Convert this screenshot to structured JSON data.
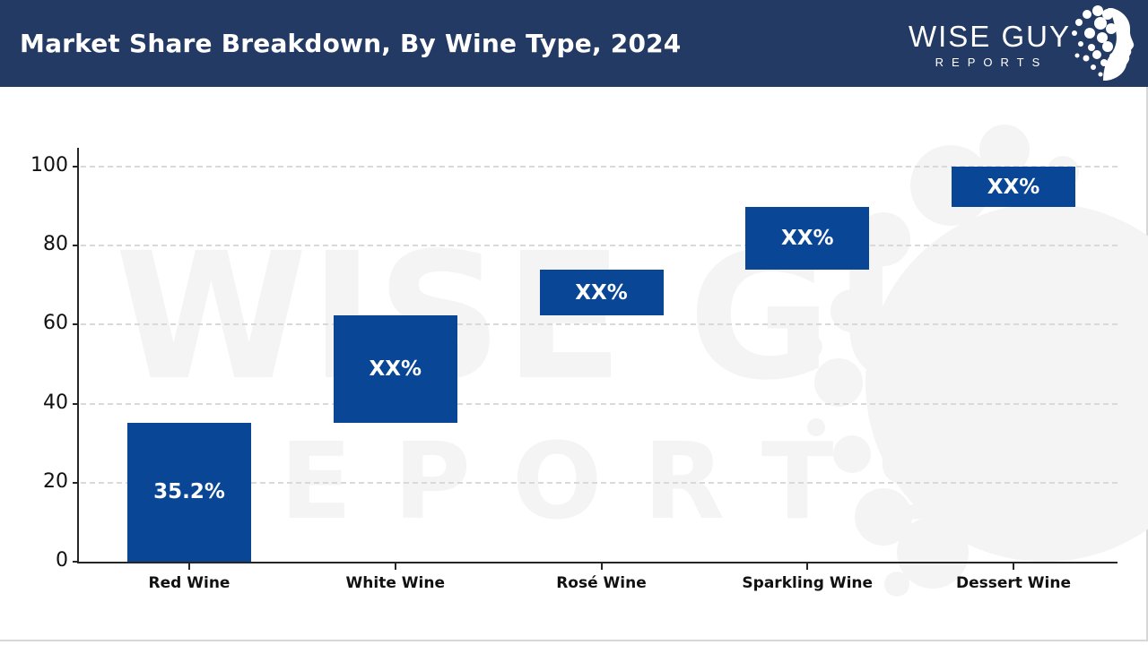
{
  "header": {
    "title": "Market Share Breakdown, By Wine Type, 2024",
    "bg_color": "#233a64",
    "logo": {
      "line1": "WISE GUY",
      "line2": "REPORTS"
    }
  },
  "watermark": {
    "line1": "WISE GUY",
    "line2": "REPORTS"
  },
  "chart_data": {
    "type": "bar",
    "subtype": "waterfall",
    "title": "Market Share Breakdown, By Wine Type, 2024",
    "categories": [
      "Red Wine",
      "White Wine",
      "Rosé Wine",
      "Sparkling Wine",
      "Dessert Wine"
    ],
    "segments": [
      {
        "category": "Red Wine",
        "start": 0,
        "end": 35.2,
        "label": "35.2%"
      },
      {
        "category": "White Wine",
        "start": 35.2,
        "end": 62.3,
        "label": "XX%"
      },
      {
        "category": "Rosé Wine",
        "start": 62.3,
        "end": 73.9,
        "label": "XX%"
      },
      {
        "category": "Sparkling Wine",
        "start": 73.9,
        "end": 89.7,
        "label": "XX%"
      },
      {
        "category": "Dessert Wine",
        "start": 89.7,
        "end": 100,
        "label": "XX%"
      }
    ],
    "y_ticks": [
      0,
      20,
      40,
      60,
      80,
      100
    ],
    "ylim": [
      0,
      104.5
    ],
    "xlabel": "",
    "ylabel": "",
    "grid": true,
    "bar_color": "#0a4696",
    "bar_label_color": "#ffffff",
    "axis_color": "#262626",
    "grid_color": "#d9d9d9"
  }
}
